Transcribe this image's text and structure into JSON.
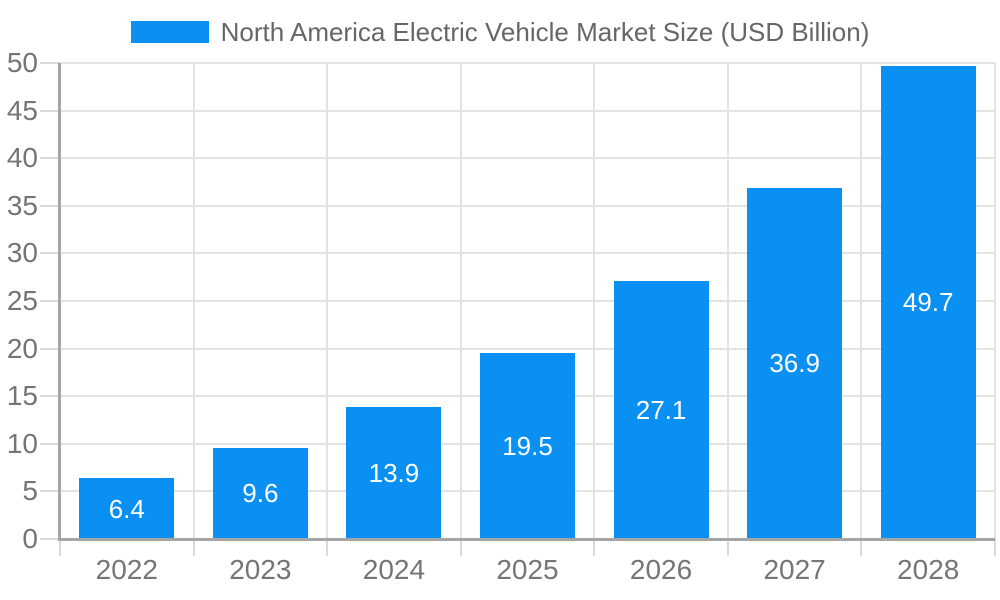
{
  "legend": {
    "label": "North America Electric Vehicle Market Size (USD Billion)"
  },
  "colors": {
    "bar": "#0990f2",
    "grid": "#e3e3e3",
    "tick": "#d9d9d9",
    "axis": "#a5a5a5",
    "axis_label_text": "#757575",
    "legend_text": "#666666",
    "value_label_text": "#ffffff",
    "background": "#ffffff"
  },
  "chart_data": {
    "type": "bar",
    "title": "North America Electric Vehicle Market Size (USD Billion)",
    "series_name": "North America Electric Vehicle Market Size (USD Billion)",
    "categories": [
      "2022",
      "2023",
      "2024",
      "2025",
      "2026",
      "2027",
      "2028"
    ],
    "values": [
      6.4,
      9.6,
      13.9,
      19.5,
      27.1,
      36.9,
      49.7
    ],
    "value_labels": [
      "6.4",
      "9.6",
      "13.9",
      "19.5",
      "27.1",
      "36.9",
      "49.7"
    ],
    "xlabel": "",
    "ylabel": "",
    "ylim": [
      0,
      50
    ],
    "yticks": [
      0,
      5,
      10,
      15,
      20,
      25,
      30,
      35,
      40,
      45,
      50
    ],
    "grid": true,
    "legend_position": "top-center",
    "value_label_position": "inside-center"
  }
}
